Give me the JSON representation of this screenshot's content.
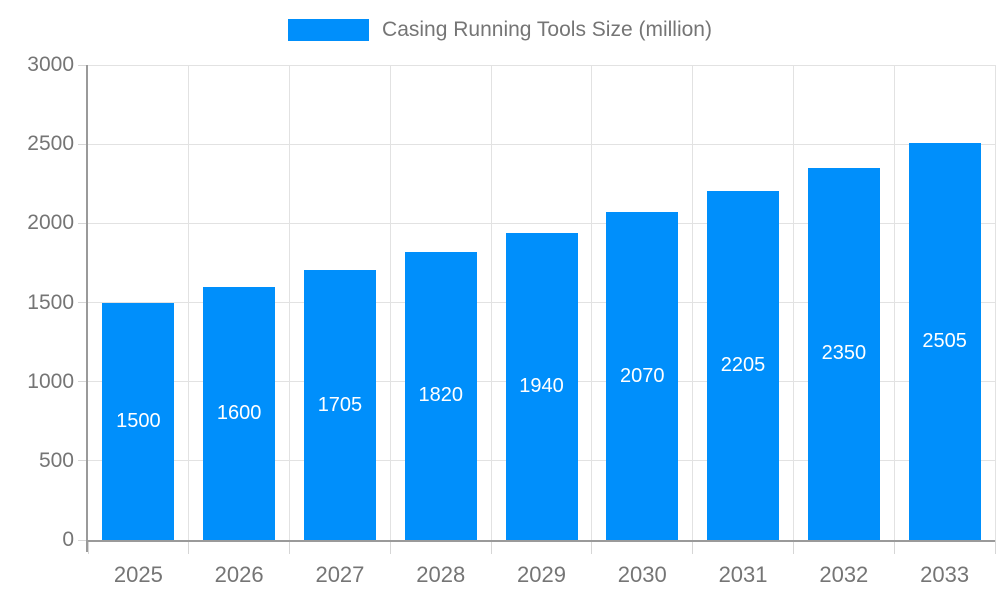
{
  "chart_data": {
    "type": "bar",
    "title": "",
    "legend": {
      "label": "Casing Running Tools Size (million)",
      "position": "top"
    },
    "categories": [
      "2025",
      "2026",
      "2027",
      "2028",
      "2029",
      "2030",
      "2031",
      "2032",
      "2033"
    ],
    "series": [
      {
        "name": "Casing Running Tools Size (million)",
        "values": [
          1500,
          1600,
          1705,
          1820,
          1940,
          2070,
          2205,
          2350,
          2505
        ]
      }
    ],
    "xlabel": "",
    "ylabel": "",
    "ylim": [
      0,
      3000
    ],
    "yticks": [
      0,
      500,
      1000,
      1500,
      2000,
      2500,
      3000
    ],
    "grid": true,
    "value_labels_shown": true,
    "colors": {
      "bar": "#008FFB",
      "value_label": "#ffffff",
      "axis_label": "#757575",
      "legend_label": "#757575",
      "gridline": "#e2e2e2",
      "axis_line": "#9a9a9a"
    }
  }
}
